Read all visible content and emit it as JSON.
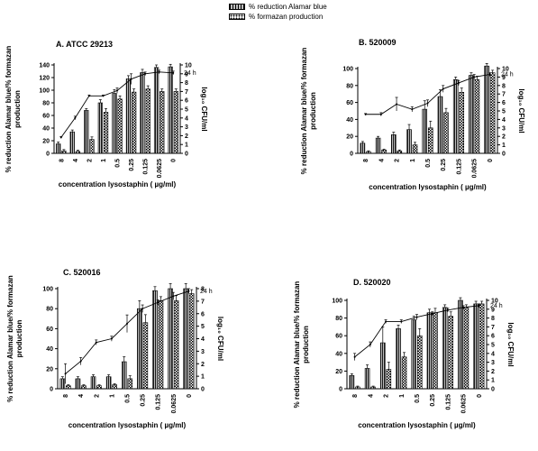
{
  "legend": {
    "alamar_label": "% reduction Alamar blue",
    "formazan_label": "% formazan production"
  },
  "chart_data": [
    {
      "type": "bar",
      "title": "A. ATCC 29213",
      "categories": [
        "8",
        "4",
        "2",
        "1",
        "0.5",
        "0.25",
        "0.125",
        "0.0625",
        "0"
      ],
      "xlabel": "concentration lysostaphin (  µg/ml)",
      "ylabel": [
        "% reduction Alamar blue/% formazan",
        "production"
      ],
      "y2label": "log₁₀ CFU/ml",
      "ylim": [
        0,
        140
      ],
      "yticks": [
        0,
        20,
        40,
        60,
        80,
        100,
        120,
        140
      ],
      "y2lim": [
        0,
        10
      ],
      "y2ticks": [
        0,
        1,
        2,
        3,
        4,
        5,
        6,
        7,
        8,
        9,
        10
      ],
      "series": [
        {
          "name": "% reduction Alamar blue",
          "values": [
            15,
            34,
            68,
            80,
            95,
            118,
            128,
            136,
            137
          ],
          "errors": [
            3,
            3,
            3,
            5,
            6,
            5,
            5,
            4,
            4
          ]
        },
        {
          "name": "% formazan production",
          "values": [
            4,
            3,
            22,
            65,
            86,
            97,
            102,
            98,
            98
          ],
          "errors": [
            2,
            2,
            4,
            6,
            5,
            5,
            5,
            4,
            4
          ]
        },
        {
          "name": "24 h",
          "axis": "right",
          "values": [
            1.8,
            4.0,
            6.5,
            6.5,
            7.1,
            8.4,
            9.0,
            9.2,
            9.1
          ],
          "errors": [
            0.1,
            0.2,
            0.1,
            0.1,
            0.3,
            0.6,
            0.2,
            0.2,
            0.2
          ]
        }
      ],
      "line_label": "24 h"
    },
    {
      "type": "bar",
      "title": "B. 520009",
      "categories": [
        "8",
        "4",
        "2",
        "1",
        "0.5",
        "0.25",
        "0.125",
        "0.0625",
        "0"
      ],
      "xlabel": "concentration lysostaphin (  µg/ml)",
      "ylabel": [
        "% reduction Alamar blue/% formazan",
        "production"
      ],
      "y2label": "log₁₀ CFU/ml",
      "ylim": [
        0,
        100
      ],
      "yticks": [
        0,
        20,
        40,
        60,
        80,
        100
      ],
      "y2lim": [
        0,
        10
      ],
      "y2ticks": [
        0,
        1,
        2,
        3,
        4,
        5,
        6,
        7,
        8,
        9,
        10
      ],
      "series": [
        {
          "name": "% reduction Alamar blue",
          "values": [
            12,
            18,
            22,
            28,
            52,
            67,
            87,
            92,
            103
          ],
          "errors": [
            2,
            2,
            3,
            6,
            10,
            8,
            3,
            3,
            3
          ]
        },
        {
          "name": "% formazan production",
          "values": [
            2,
            4,
            3,
            10,
            30,
            48,
            72,
            87,
            95
          ],
          "errors": [
            1,
            1,
            1,
            3,
            8,
            5,
            5,
            4,
            3
          ]
        },
        {
          "name": "24 h",
          "axis": "right",
          "values": [
            4.6,
            4.6,
            5.8,
            5.2,
            5.9,
            7.6,
            8.3,
            9.0,
            9.3
          ],
          "errors": [
            0.1,
            0.2,
            0.8,
            0.3,
            0.4,
            0.4,
            0.3,
            0.3,
            0.2
          ]
        }
      ],
      "line_label": "24 h"
    },
    {
      "type": "bar",
      "title": "C. 520016",
      "categories": [
        "8",
        "4",
        "2",
        "1",
        "0.5",
        "0.25",
        "0.125",
        "0.0625",
        "0"
      ],
      "xlabel": "concentration lysostaphin (  µg/ml)",
      "ylabel": [
        "% reduction Alamar blue/% formazan",
        "production"
      ],
      "y2label": "log₁₀ CFU/ml",
      "ylim": [
        0,
        100
      ],
      "yticks": [
        0,
        20,
        40,
        60,
        80,
        100
      ],
      "y2lim": [
        0,
        8
      ],
      "y2ticks": [
        0,
        1,
        2,
        3,
        4,
        5,
        6,
        7,
        8
      ],
      "series": [
        {
          "name": "% reduction Alamar blue",
          "values": [
            10,
            10,
            12,
            12,
            27,
            80,
            98,
            100,
            100
          ],
          "errors": [
            2,
            2,
            2,
            2,
            5,
            8,
            4,
            5,
            5
          ]
        },
        {
          "name": "% formazan production",
          "values": [
            3,
            3,
            3,
            4,
            10,
            66,
            88,
            88,
            95
          ],
          "errors": [
            1,
            1,
            1,
            1,
            3,
            8,
            4,
            5,
            4
          ]
        },
        {
          "name": "24 h",
          "axis": "right",
          "values": [
            1.2,
            2.2,
            3.7,
            4.0,
            5.2,
            6.4,
            6.9,
            7.4,
            7.8
          ],
          "errors": [
            0.8,
            0.3,
            0.2,
            0.2,
            0.7,
            0.3,
            0.2,
            0.3,
            0.2
          ]
        }
      ],
      "line_label": "24 h"
    },
    {
      "type": "bar",
      "title": "D. 520020",
      "categories": [
        "8",
        "4",
        "2",
        "1",
        "0.5",
        "0.25",
        "0.125",
        "0.0625",
        "0"
      ],
      "xlabel": "concentration lysostaphin (  µg/ml)",
      "ylabel": [
        "% reduction Alamar blue/% formazan",
        "production"
      ],
      "y2label": "log₁₀ CFU/ml",
      "ylim": [
        0,
        100
      ],
      "yticks": [
        0,
        20,
        40,
        60,
        80,
        100
      ],
      "y2lim": [
        0,
        10
      ],
      "y2ticks": [
        0,
        1,
        2,
        3,
        4,
        5,
        6,
        7,
        8,
        9,
        10
      ],
      "series": [
        {
          "name": "% reduction Alamar blue",
          "values": [
            15,
            23,
            52,
            68,
            78,
            86,
            92,
            100,
            96
          ],
          "errors": [
            2,
            4,
            18,
            4,
            4,
            4,
            3,
            3,
            3
          ]
        },
        {
          "name": "% formazan production",
          "values": [
            2,
            2,
            22,
            36,
            60,
            86,
            82,
            92,
            96
          ],
          "errors": [
            1,
            1,
            8,
            5,
            8,
            5,
            5,
            3,
            3
          ]
        },
        {
          "name": "24 h",
          "axis": "right",
          "values": [
            3.6,
            5.0,
            7.6,
            7.6,
            8.1,
            8.5,
            8.9,
            9.2,
            9.4
          ],
          "errors": [
            0.4,
            0.3,
            0.2,
            0.2,
            0.3,
            0.2,
            0.2,
            0.2,
            0.2
          ]
        }
      ],
      "line_label": "24 h"
    }
  ]
}
